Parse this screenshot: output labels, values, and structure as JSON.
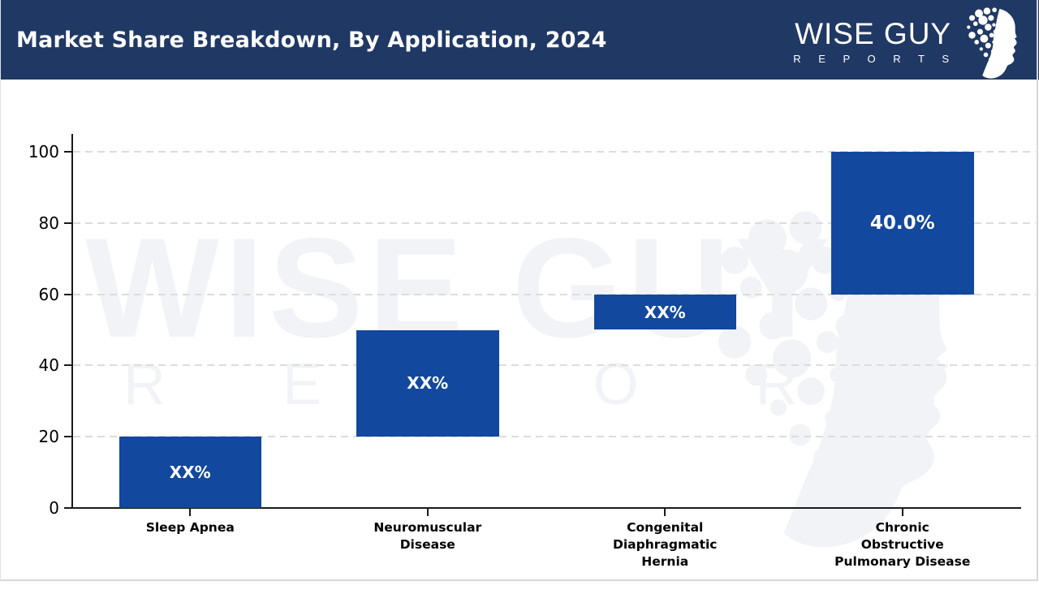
{
  "header": {
    "title": "Market Share Breakdown, By Application, 2024",
    "logo": {
      "wordmark": "WISE GUY",
      "sub": "R E P O R T S"
    }
  },
  "watermark": {
    "wordmark": "WISE GUY",
    "sub": "R E P O R T S"
  },
  "chart_data": {
    "type": "bar",
    "variant": "waterfall",
    "title": "Market Share Breakdown, By Application, 2024",
    "categories": [
      "Sleep Apnea",
      "Neuromuscular Disease",
      "Congenital Diaphragmatic Hernia",
      "Chronic Obstructive Pulmonary Disease"
    ],
    "category_labels": [
      "Sleep Apnea",
      "Neuromuscular\nDisease",
      "Congenital\nDiaphragmatic\nHernia",
      "Chronic\nObstructive\nPulmonary Disease"
    ],
    "series": [
      {
        "name": "Market Share (%)",
        "segments": [
          {
            "category": "Sleep Apnea",
            "start": 0,
            "end": 20,
            "label": "XX%"
          },
          {
            "category": "Neuromuscular Disease",
            "start": 20,
            "end": 50,
            "label": "XX%"
          },
          {
            "category": "Congenital Diaphragmatic Hernia",
            "start": 50,
            "end": 60,
            "label": "XX%"
          },
          {
            "category": "Chronic Obstructive Pulmonary Disease",
            "start": 60,
            "end": 100,
            "label": "40.0%"
          }
        ]
      }
    ],
    "ylim": [
      0,
      100
    ],
    "yticks": [
      0,
      20,
      40,
      60,
      80,
      100
    ],
    "xlabel": "",
    "ylabel": "",
    "grid": "horizontal-dashed",
    "legend": "none",
    "bar_color": "#12489d",
    "bar_label_color": "#ffffff"
  },
  "colors": {
    "header_bg": "#203864",
    "bar": "#12489d",
    "grid": "#dcdcdc",
    "axis": "#1a1a1a",
    "watermark": "#f2f3f6",
    "frame": "#d6d6d6"
  }
}
